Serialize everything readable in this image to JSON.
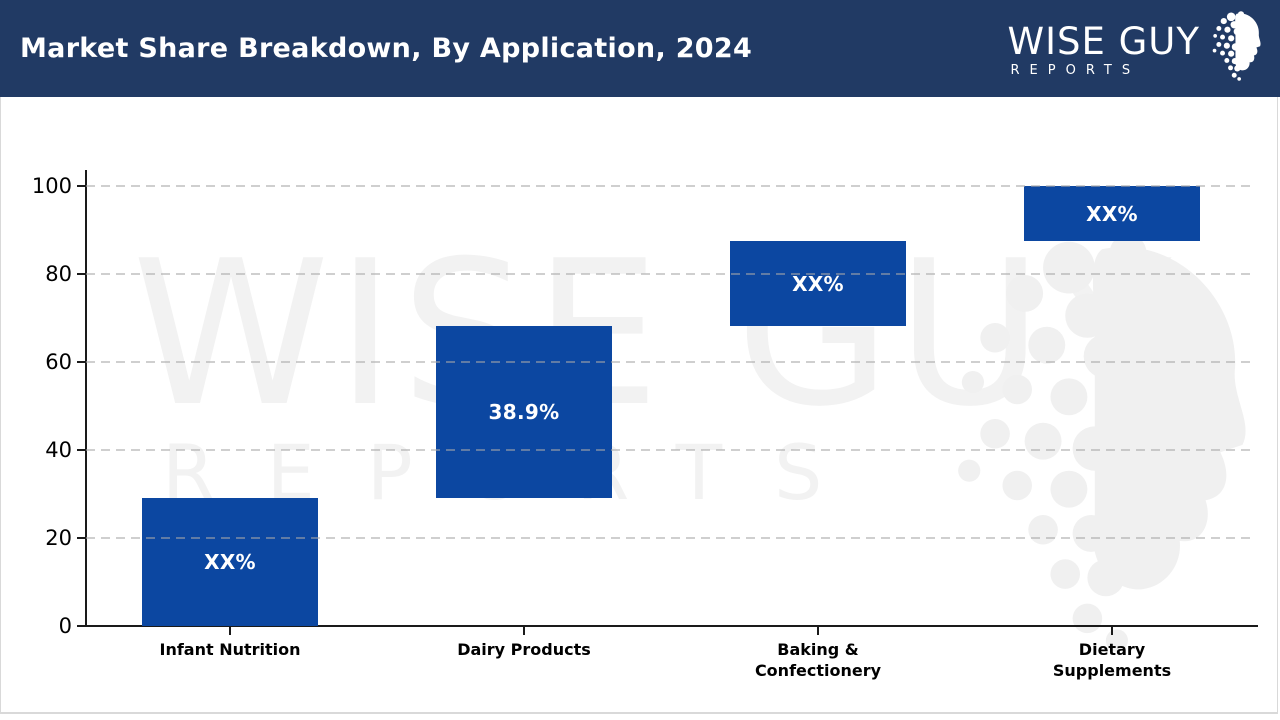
{
  "header": {
    "title": "Market Share Breakdown, By Application, 2024",
    "brand": {
      "line1": "WISE GUY",
      "line2": "REPORTS"
    }
  },
  "watermark": {
    "line1": "WISE GUY",
    "line2": "REPORTS"
  },
  "chart_data": {
    "type": "bar",
    "subtype": "waterfall",
    "title": "Market Share Breakdown, By Application, 2024",
    "categories": [
      "Infant Nutrition",
      "Dairy Products",
      "Baking &\nConfectionery",
      "Dietary\nSupplements"
    ],
    "segments": [
      {
        "category": "Infant Nutrition",
        "start": 0,
        "end": 29.2,
        "label": "XX%"
      },
      {
        "category": "Dairy Products",
        "start": 29.2,
        "end": 68.1,
        "label": "38.9%"
      },
      {
        "category": "Baking & Confectionery",
        "start": 68.1,
        "end": 87.5,
        "label": "XX%"
      },
      {
        "category": "Dietary Supplements",
        "start": 87.5,
        "end": 100,
        "label": "XX%"
      }
    ],
    "bar_labels": [
      "XX%",
      "38.9%",
      "XX%",
      "XX%"
    ],
    "xlabel": "",
    "ylabel": "",
    "ylim": [
      0,
      100
    ],
    "yticks": [
      0,
      20,
      40,
      60,
      80,
      100
    ],
    "grid": "horizontal-dashed-over-bars",
    "legend": "none",
    "bar_color": "#0c47a1",
    "colors": {
      "header_bg": "#213a64",
      "bar": "#0c47a1",
      "axis": "#1a1a1a",
      "gridline": "#bdbdbd",
      "watermark": "#f2f2f2",
      "label_on_bar": "#ffffff"
    }
  }
}
